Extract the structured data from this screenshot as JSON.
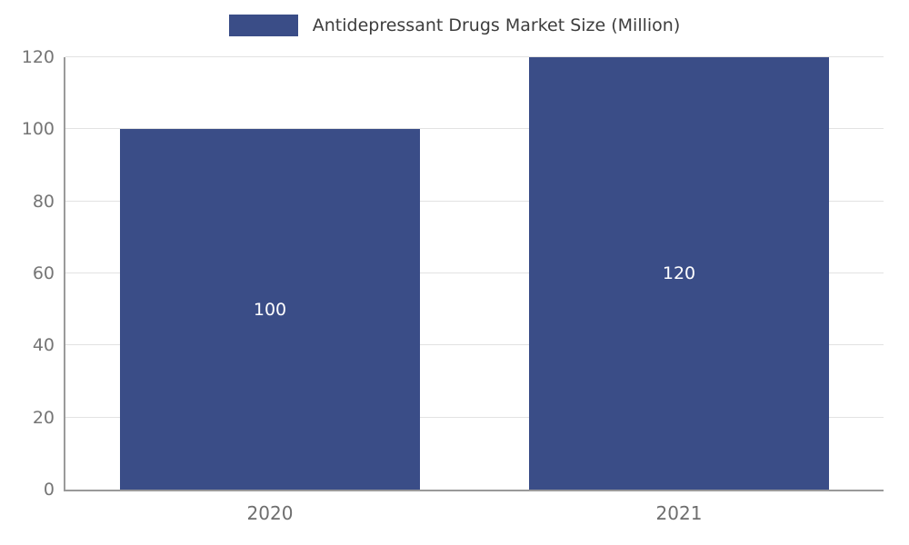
{
  "legend": {
    "label": "Antidepressant Drugs Market Size (Million)"
  },
  "chart_data": {
    "type": "bar",
    "categories": [
      "2020",
      "2021"
    ],
    "series": [
      {
        "name": "Antidepressant Drugs Market Size (Million)",
        "values": [
          100,
          120
        ]
      }
    ],
    "data_labels": [
      "100",
      "120"
    ],
    "title": "",
    "xlabel": "",
    "ylabel": "",
    "ylim": [
      0,
      120
    ],
    "yticks": [
      0,
      20,
      40,
      60,
      80,
      100,
      120
    ],
    "bar_color": "#3a4d87",
    "grid": true,
    "legend_position": "top",
    "background_color": "#ffffff",
    "tick_label_color": "#757575",
    "data_label_color": "#ffffff"
  }
}
